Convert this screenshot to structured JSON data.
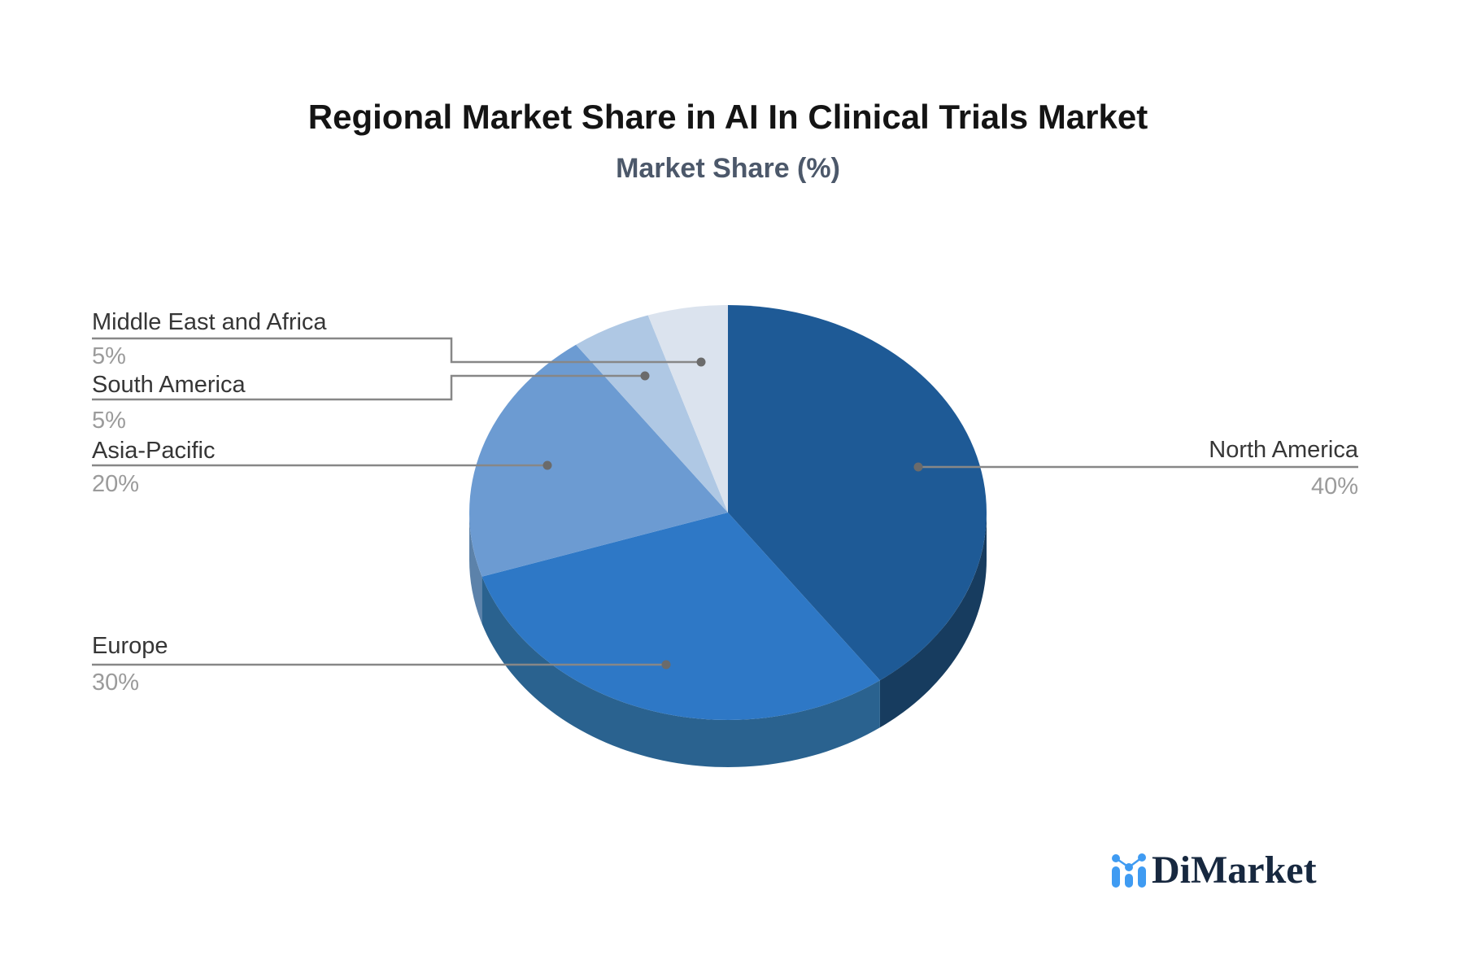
{
  "title": "Regional Market Share in AI In Clinical Trials Market",
  "subtitle": "Market Share (%)",
  "brand": {
    "name": "DiMarket"
  },
  "chart_data": {
    "type": "pie",
    "style": "3d",
    "title": "Regional Market Share in AI In Clinical Trials Market",
    "value_label": "Market Share (%)",
    "unit": "%",
    "rotation": "clockwise-from-top",
    "start_angle_deg": 0,
    "legend_position": "callout-labels",
    "connector_color": "#878787",
    "dot_color": "#6b6b6b",
    "slices": [
      {
        "label": "North America",
        "value": 40,
        "display": "40%",
        "color": "#1E5A96",
        "side_color": "#173C5F"
      },
      {
        "label": "Europe",
        "value": 30,
        "display": "30%",
        "color": "#2E78C6",
        "side_color": "#2A628F"
      },
      {
        "label": "Asia-Pacific",
        "value": 20,
        "display": "20%",
        "color": "#6C9BD2",
        "side_color": "#5C82AA"
      },
      {
        "label": "South America",
        "value": 5,
        "display": "5%",
        "color": "#AFC8E4"
      },
      {
        "label": "Middle East and Africa",
        "value": 5,
        "display": "5%",
        "color": "#DBE3EE"
      }
    ]
  }
}
